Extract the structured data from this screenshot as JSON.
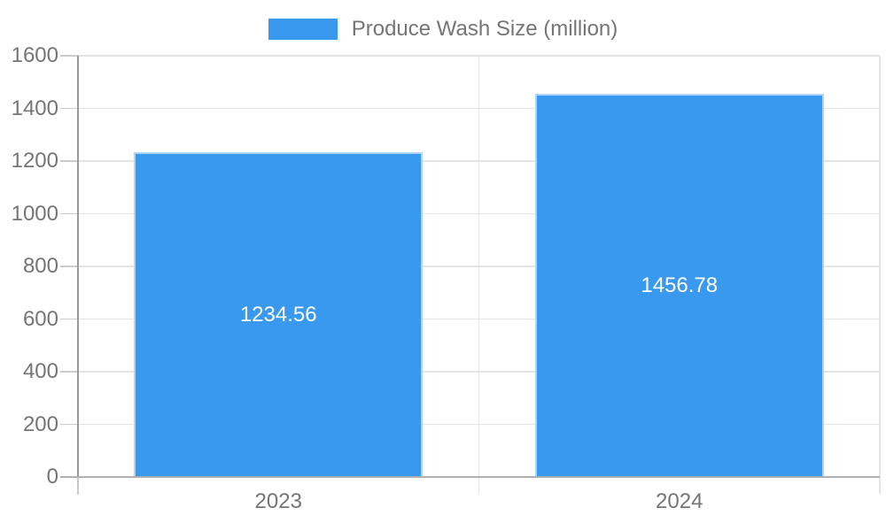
{
  "chart_data": {
    "type": "bar",
    "title": "Produce Wash Size (million)",
    "categories": [
      "2023",
      "2024"
    ],
    "values": [
      1234.56,
      1456.78
    ],
    "value_labels": [
      "1234.56",
      "1456.78"
    ],
    "xlabel": "",
    "ylabel": "",
    "ylim": [
      0,
      1600
    ],
    "ytick_step": 200,
    "yticks": [
      "0",
      "200",
      "400",
      "600",
      "800",
      "1000",
      "1200",
      "1400",
      "1600"
    ],
    "grid": true,
    "legend_position": "top",
    "bar_label_position": "center"
  },
  "legend": {
    "items": [
      {
        "label": "Produce Wash Size (million)",
        "color": "#3999ee"
      }
    ]
  },
  "colors": {
    "bar_fill": "#3999ee",
    "bar_border": "#aed4f7",
    "grid_line": "#e4e4e4",
    "y_axis_line": "#999999",
    "x_axis_line": "#b0b0b0",
    "tick_mark": "#cbcbcb",
    "axis_label_text": "#757575",
    "bar_label_text": "#ffffff",
    "background": "#ffffff"
  }
}
